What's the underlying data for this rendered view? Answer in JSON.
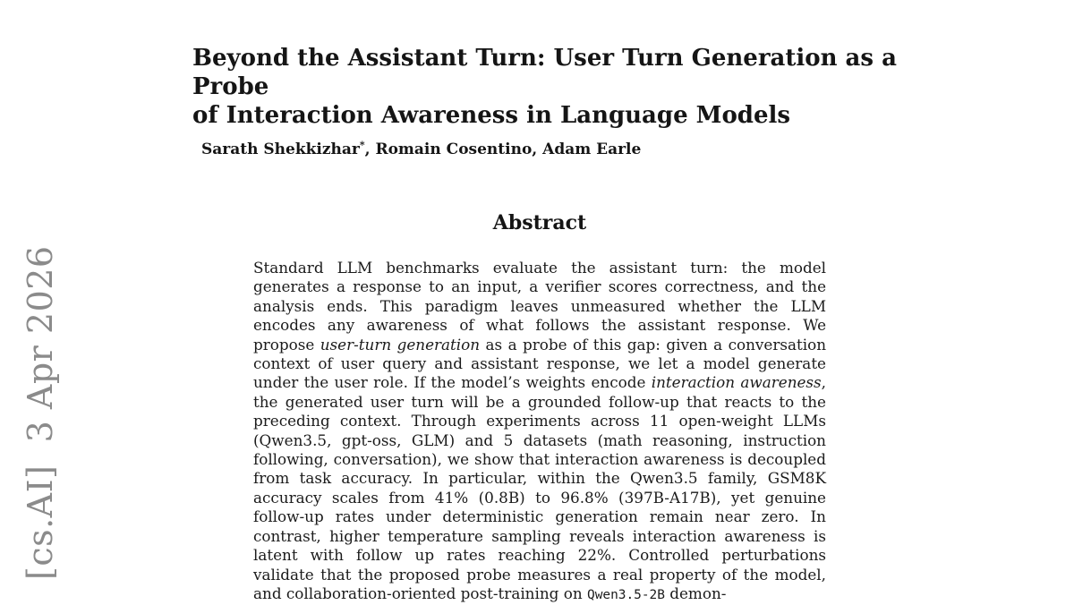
{
  "colors": {
    "background": "#ffffff",
    "text": "#1b1b1b",
    "watermark_gray": "#8b8b8b"
  },
  "arxiv_watermark": {
    "text": "[cs.AI]  3 Apr 2026"
  },
  "paper": {
    "title_lines": [
      "Beyond the Assistant Turn: User Turn Generation as a Probe",
      "of Interaction Awareness in Language Models"
    ],
    "authors": {
      "first_author": "Sarath Shekkizhar",
      "affiliation_marker": "*",
      "rest": ", Romain Cosentino, Adam Earle"
    },
    "abstract": {
      "heading": "Abstract",
      "segments": [
        {
          "style": "normal",
          "text": "Standard LLM benchmarks evaluate the assistant turn: the model generates a response to an input, a verifier scores correctness, and the analysis ends. This paradigm leaves unmeasured whether the LLM encodes any awareness of what follows the assistant response. We propose "
        },
        {
          "style": "italic",
          "text": "user-turn generation"
        },
        {
          "style": "normal",
          "text": " as a probe of this gap: given a conversation context of user query and assistant response, we let a model generate under the user role. If the model’s weights encode "
        },
        {
          "style": "italic",
          "text": "interaction awareness"
        },
        {
          "style": "normal",
          "text": ", the generated user turn will be a grounded follow-up that reacts to the preceding context. Through experiments across 11 open-weight LLMs (Qwen3.5, gpt-oss, GLM) and 5 datasets (math reasoning, instruction following, conversation), we show that interaction awareness is decoupled from task accuracy. In particular, within the Qwen3.5 family, GSM8K accuracy scales from 41% (0.8B) to 96.8% (397B-A17B), yet genuine follow-up rates under deterministic generation remain near zero. In contrast, higher temperature sampling reveals interaction awareness is latent with follow up rates reaching 22%. Controlled perturbations validate that the proposed probe measures a real property of the model, and collaboration-oriented post-training on "
        },
        {
          "style": "mono",
          "text": "Qwen3.5-2B"
        },
        {
          "style": "normal",
          "text": " demon-"
        }
      ]
    }
  }
}
